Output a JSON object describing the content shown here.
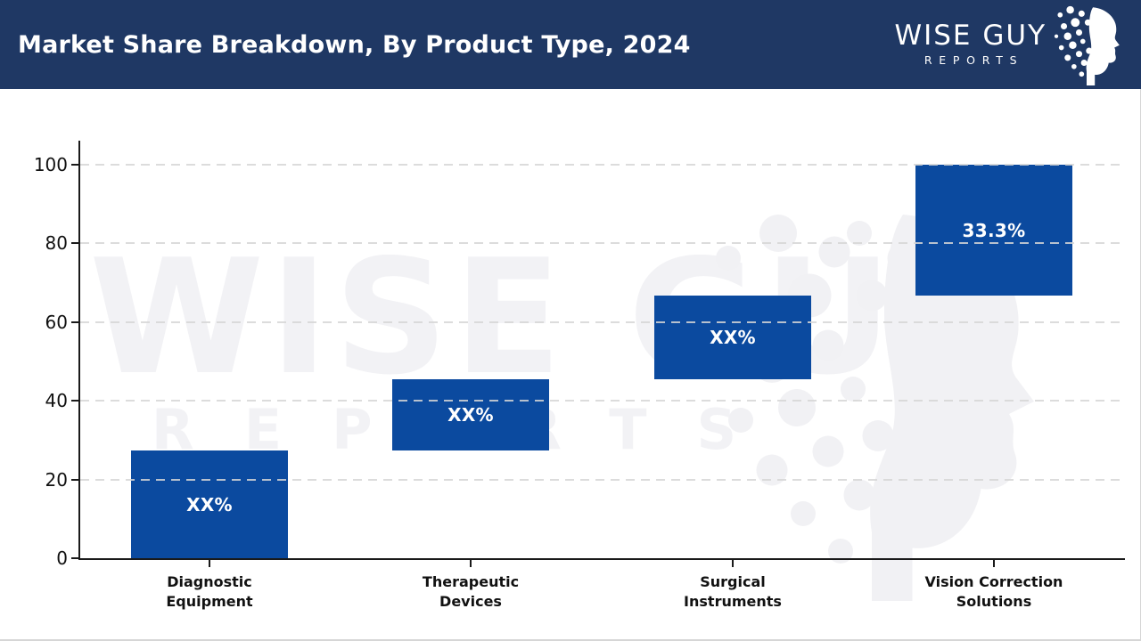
{
  "header": {
    "title": "Market Share Breakdown, By Product Type, 2024",
    "bg_color": "#1f3864",
    "logo": {
      "line1": "WISE GUY",
      "line2": "REPORTS"
    }
  },
  "watermark": {
    "line1": "WISE GUY",
    "line2": "REPORTS"
  },
  "chart_data": {
    "type": "bar",
    "subtype": "waterfall",
    "title": "Market Share Breakdown, By Product Type, 2024",
    "xlabel": "",
    "ylabel": "",
    "ylim": [
      0,
      100
    ],
    "yticks": [
      0,
      20,
      40,
      60,
      80,
      100
    ],
    "grid": "dashed horizontal",
    "legend": "none",
    "bar_color": "#0b4a9f",
    "bar_label_color": "#ffffff",
    "categories": [
      "Diagnostic\nEquipment",
      "Therapeutic\nDevices",
      "Surgical\nInstruments",
      "Vision Correction\nSolutions"
    ],
    "series": [
      {
        "category": "Diagnostic Equipment",
        "from": 0,
        "to": 27.3,
        "value": 27.3,
        "label": "XX%"
      },
      {
        "category": "Therapeutic Devices",
        "from": 27.3,
        "to": 45.5,
        "value": 18.2,
        "label": "XX%"
      },
      {
        "category": "Surgical Instruments",
        "from": 45.5,
        "to": 66.7,
        "value": 21.2,
        "label": "XX%"
      },
      {
        "category": "Vision Correction Solutions",
        "from": 66.7,
        "to": 100,
        "value": 33.3,
        "label": "33.3%"
      }
    ]
  }
}
